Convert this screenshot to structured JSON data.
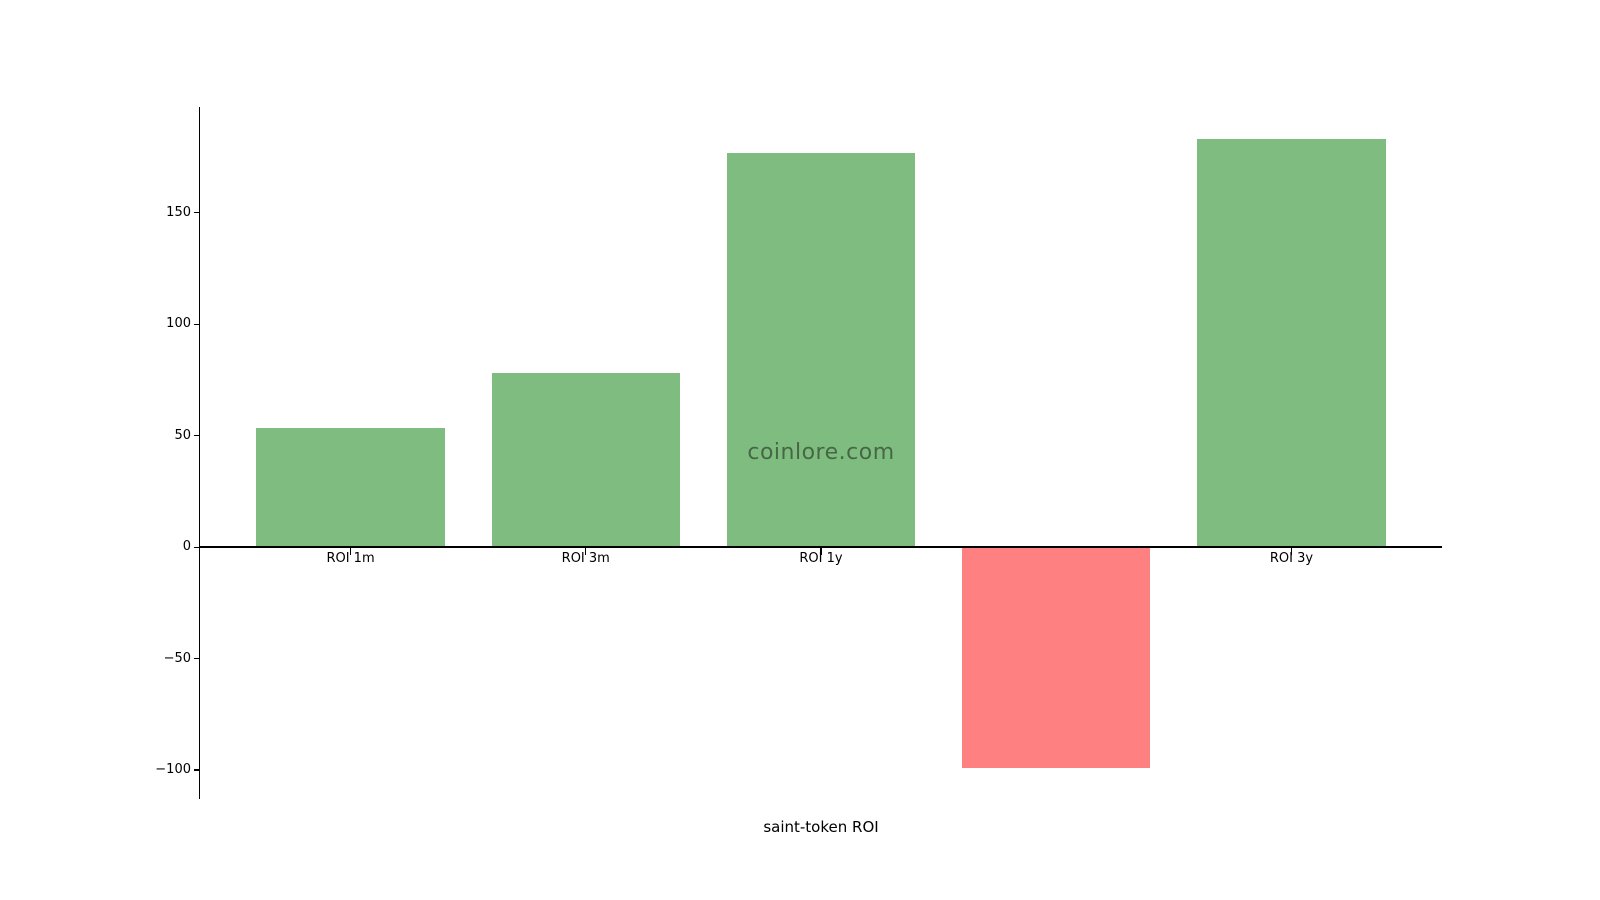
{
  "page": {
    "background": "#ffffff"
  },
  "watermark": {
    "text": "coinlore.com",
    "color": "rgba(0,0,0,0.45)"
  },
  "chart_data": {
    "type": "bar",
    "title": "saint-token ROI",
    "categories": [
      "ROI 1m",
      "ROI 3m",
      "ROI 1y",
      "",
      "ROI 3y"
    ],
    "values": [
      53.4,
      78,
      177,
      -99,
      183
    ],
    "bar_colors": [
      "#7fbc7f",
      "#7fbc7f",
      "#7fbc7f",
      "#ff8080",
      "#7fbc7f"
    ],
    "positive_color": "#7fbc7f",
    "negative_color": "#ff8080",
    "y_tick_labels": [
      "150",
      "100",
      "50",
      "0",
      "−50",
      "−100"
    ],
    "y_tick_values": [
      150,
      100,
      50,
      0,
      -50,
      -100
    ],
    "ylim": [
      -113,
      197.5
    ],
    "xlim": [
      -0.64,
      4.64
    ],
    "bar_width": 0.8,
    "xlabel": "",
    "ylabel": "",
    "grid": false,
    "legend": false,
    "axis_color": "#000000",
    "tick_label_color": "#000000"
  }
}
